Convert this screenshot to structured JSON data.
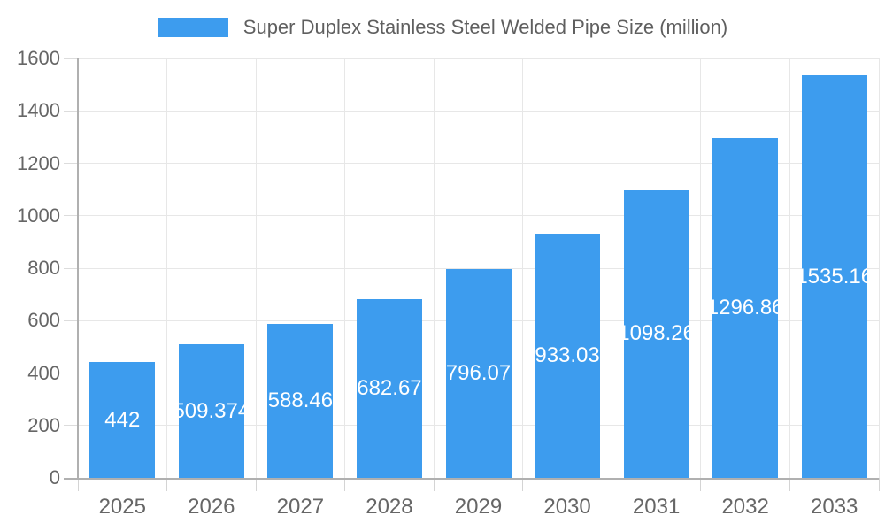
{
  "legend": {
    "label": "Super Duplex Stainless Steel Welded Pipe Size (million)",
    "swatch_color": "#3d9cee"
  },
  "chart_data": {
    "type": "bar",
    "title": "Super Duplex Stainless Steel Welded Pipe Size (million)",
    "categories": [
      "2025",
      "2026",
      "2027",
      "2028",
      "2029",
      "2030",
      "2031",
      "2032",
      "2033"
    ],
    "values": [
      442,
      509.374,
      588.46,
      682.67,
      796.07,
      933.03,
      1098.26,
      1296.86,
      1535.16
    ],
    "value_labels": [
      "442",
      "509.374",
      "588.46",
      "682.67",
      "796.07",
      "933.03",
      "1098.26",
      "1296.86",
      "1535.16"
    ],
    "xlabel": "",
    "ylabel": "",
    "ylim": [
      0,
      1600
    ],
    "yticks": [
      0,
      200,
      400,
      600,
      800,
      1000,
      1200,
      1400,
      1600
    ],
    "grid": true,
    "legend_position": "top",
    "bar_color": "#3d9cee",
    "value_label_color": "#ffffff",
    "axis_text_color": "#666666",
    "grid_color": "#e7e7e7",
    "axis_line_color": "#b0b0b0"
  }
}
